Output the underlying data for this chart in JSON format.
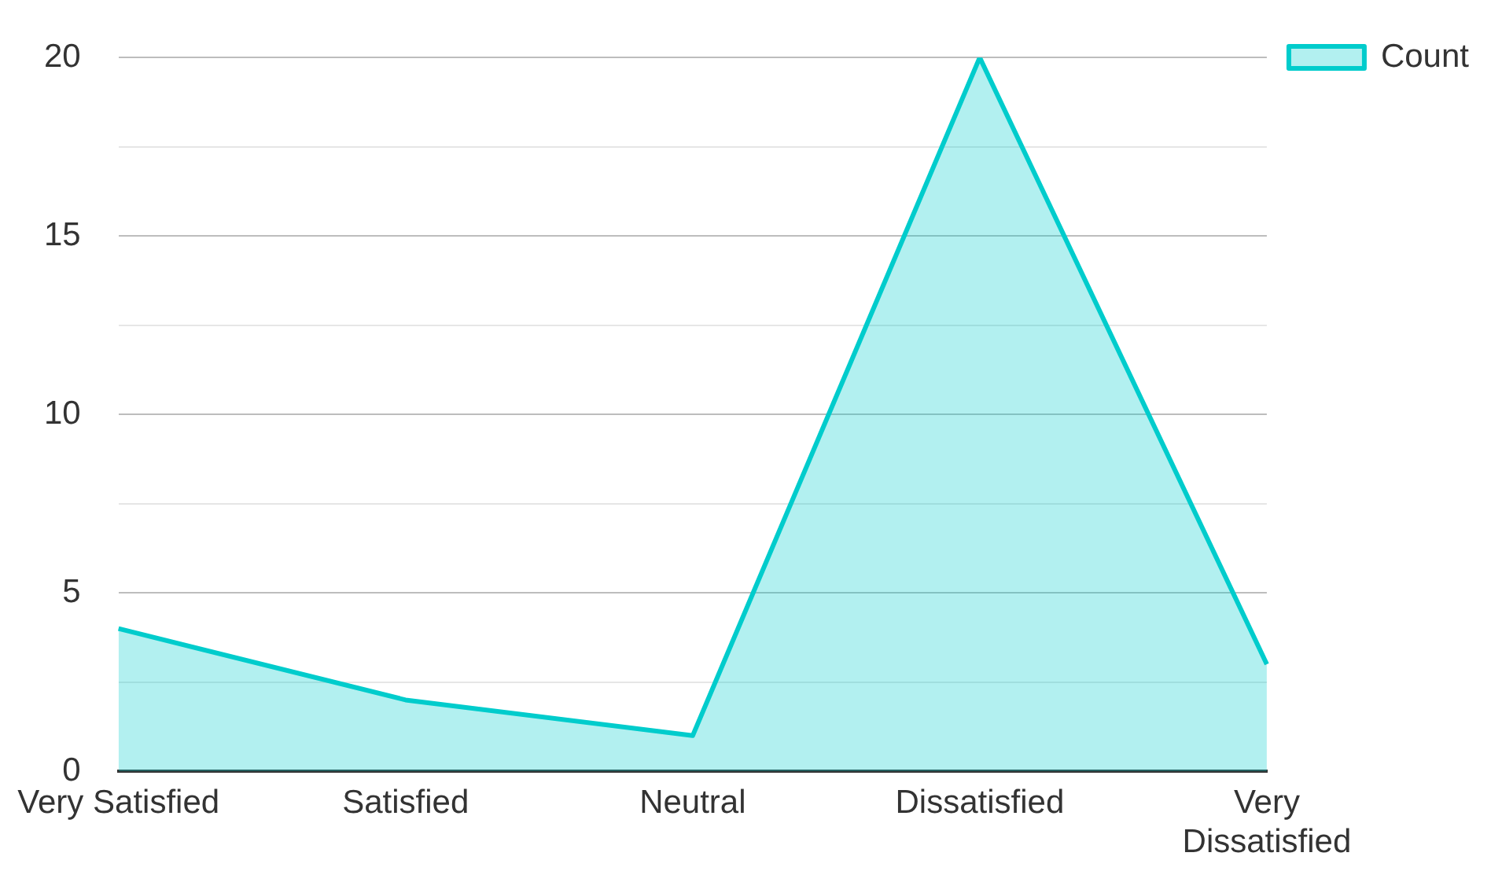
{
  "chart_data": {
    "type": "area",
    "categories": [
      "Very Satisfied",
      "Satisfied",
      "Neutral",
      "Dissatisfied",
      "Very Dissatisfied"
    ],
    "series": [
      {
        "name": "Count",
        "color": "#00cccc",
        "values": [
          4,
          2,
          1,
          20,
          3
        ]
      }
    ],
    "ylim": [
      0,
      20
    ],
    "yticks": [
      0,
      {
        "value": 2.5,
        "label": null
      },
      5,
      {
        "value": 7.5,
        "label": null
      },
      10,
      {
        "value": 12.5,
        "label": null
      },
      15,
      {
        "value": 17.5,
        "label": null
      },
      20
    ],
    "grid": "y",
    "legend": "top right"
  }
}
